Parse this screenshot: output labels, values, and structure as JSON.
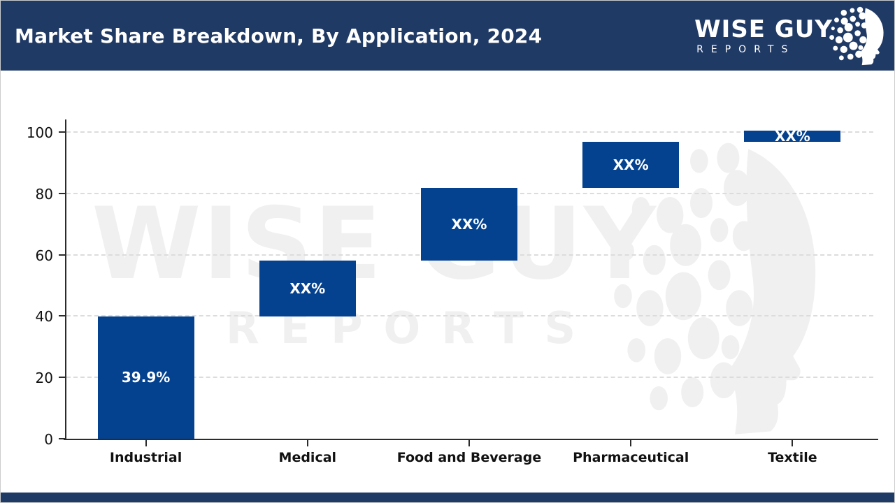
{
  "header": {
    "title": "Market Share Breakdown, By Application, 2024",
    "logo": {
      "main": "WISE GUY",
      "sub": "REPORTS"
    }
  },
  "watermark": {
    "main": "WISE GUY",
    "sub": "REPORTS"
  },
  "colors": {
    "header_navy": "#203A66",
    "footer_navy": "#203A66",
    "bar_blue": "#04428F",
    "bar_label_white": "#FFFFFF",
    "grid_gray": "#DCDCDC",
    "axis_dark": "#2B2B2B",
    "watermark_gray": "#F0F0F1"
  },
  "chart_data": {
    "type": "bar",
    "subtype": "waterfall",
    "title": "Market Share Breakdown, By Application, 2024",
    "categories": [
      "Industrial",
      "Medical",
      "Food and Beverage",
      "Pharmaceutical",
      "Textile"
    ],
    "segments": [
      {
        "category": "Industrial",
        "start": 0,
        "end": 39.9,
        "size": 39.9,
        "label": "39.9%"
      },
      {
        "category": "Medical",
        "start": 39.9,
        "end": 58.1,
        "size": 18.2,
        "label": "XX%"
      },
      {
        "category": "Food and Beverage",
        "start": 58.1,
        "end": 81.8,
        "size": 23.7,
        "label": "XX%"
      },
      {
        "category": "Pharmaceutical",
        "start": 81.8,
        "end": 96.8,
        "size": 15.0,
        "label": "XX%"
      },
      {
        "category": "Textile",
        "start": 96.8,
        "end": 100.4,
        "size": 3.6,
        "label": "XX%"
      }
    ],
    "xlabel": "",
    "ylabel": "",
    "yticks": [
      0,
      20,
      40,
      60,
      80,
      100
    ],
    "ylim": [
      0,
      104
    ],
    "grid": "horizontal dashed, behind bars",
    "legend": "none",
    "bar_value_labels": "centered inside bars, white bold"
  }
}
